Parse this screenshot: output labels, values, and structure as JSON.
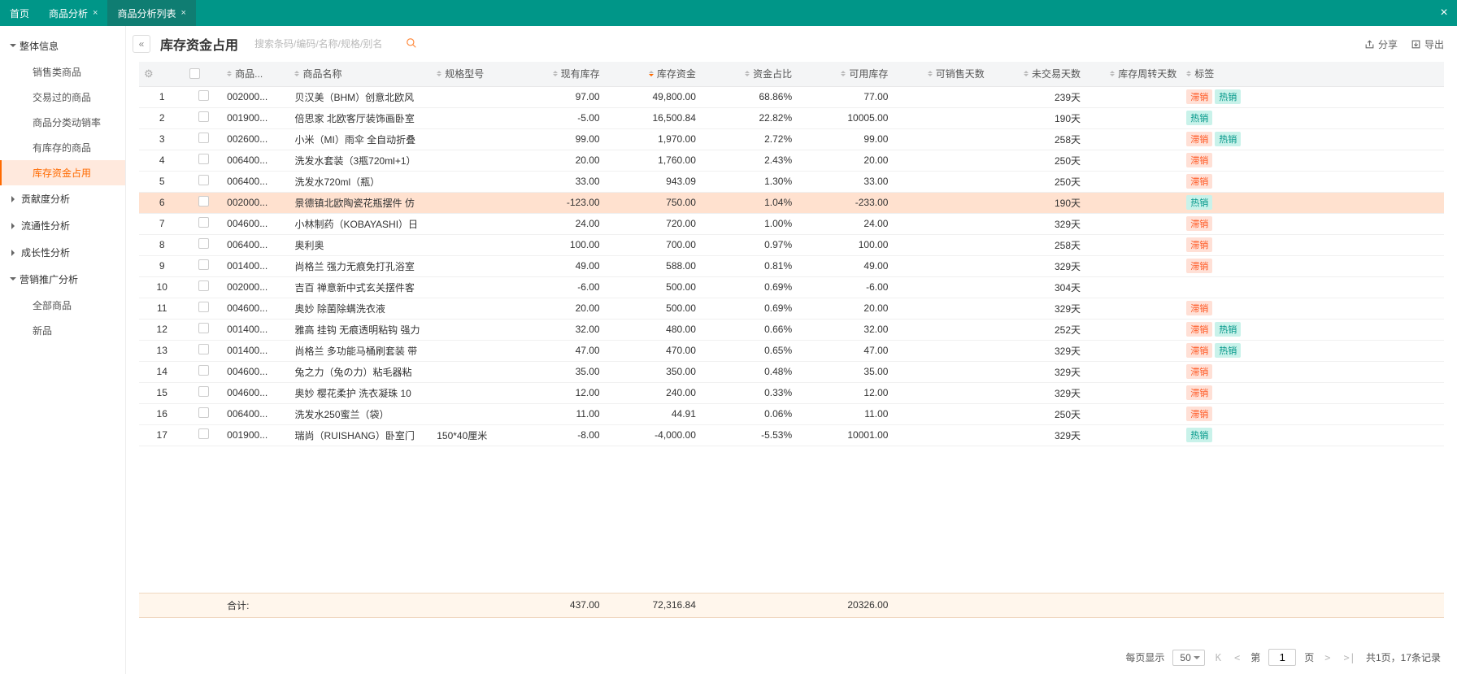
{
  "tabs": [
    {
      "label": "首页",
      "closable": false,
      "active": false
    },
    {
      "label": "商品分析",
      "closable": true,
      "active": false
    },
    {
      "label": "商品分析列表",
      "closable": true,
      "active": true
    }
  ],
  "sidebar": {
    "groups": [
      {
        "label": "整体信息",
        "open": true,
        "items": [
          {
            "label": "销售类商品"
          },
          {
            "label": "交易过的商品"
          },
          {
            "label": "商品分类动销率"
          },
          {
            "label": "有库存的商品"
          },
          {
            "label": "库存资金占用",
            "active": true
          }
        ]
      },
      {
        "label": "贡献度分析",
        "open": false,
        "items": []
      },
      {
        "label": "流通性分析",
        "open": false,
        "items": []
      },
      {
        "label": "成长性分析",
        "open": false,
        "items": []
      },
      {
        "label": "营销推广分析",
        "open": true,
        "items": [
          {
            "label": "全部商品"
          },
          {
            "label": "新品"
          }
        ]
      }
    ]
  },
  "page": {
    "title": "库存资金占用",
    "search_placeholder": "搜索条码/编码/名称/规格/别名",
    "share": "分享",
    "export": "导出"
  },
  "columns": [
    {
      "key": "idx",
      "label": "",
      "cls": "col-idx",
      "gear": true
    },
    {
      "key": "chk",
      "label": "",
      "cls": "col-chk",
      "checkbox": true
    },
    {
      "key": "code",
      "label": "商品...",
      "cls": "col-code",
      "sort": true
    },
    {
      "key": "name",
      "label": "商品名称",
      "cls": "col-name",
      "sort": true
    },
    {
      "key": "spec",
      "label": "规格型号",
      "cls": "col-spec",
      "sort": true
    },
    {
      "key": "stock",
      "label": "现有库存",
      "cls": "col-n",
      "sort": true,
      "num": true
    },
    {
      "key": "fund",
      "label": "库存资金",
      "cls": "col-n",
      "sort": true,
      "num": true,
      "sorted": "desc"
    },
    {
      "key": "ratio",
      "label": "资金占比",
      "cls": "col-n",
      "sort": true,
      "num": true
    },
    {
      "key": "avail",
      "label": "可用库存",
      "cls": "col-n",
      "sort": true,
      "num": true
    },
    {
      "key": "saleDays",
      "label": "可销售天数",
      "cls": "col-n",
      "sort": true,
      "num": true
    },
    {
      "key": "noTrade",
      "label": "未交易天数",
      "cls": "col-n",
      "sort": true,
      "num": true
    },
    {
      "key": "turnDays",
      "label": "库存周转天数",
      "cls": "col-n",
      "sort": true,
      "num": true
    },
    {
      "key": "tags",
      "label": "标签",
      "cls": "col-tag",
      "sort": true
    }
  ],
  "rows": [
    {
      "idx": 1,
      "code": "002000...",
      "name": "贝汉美（BHM）创意北欧风",
      "spec": "",
      "stock": "97.00",
      "fund": "49,800.00",
      "ratio": "68.86%",
      "avail": "77.00",
      "saleDays": "",
      "noTrade": "239天",
      "turnDays": "",
      "tags": [
        "slow",
        "hot"
      ]
    },
    {
      "idx": 2,
      "code": "001900...",
      "name": "倍思家 北欧客厅装饰画卧室",
      "spec": "",
      "stock": "-5.00",
      "fund": "16,500.84",
      "ratio": "22.82%",
      "avail": "10005.00",
      "saleDays": "",
      "noTrade": "190天",
      "turnDays": "",
      "tags": [
        "hot"
      ]
    },
    {
      "idx": 3,
      "code": "002600...",
      "name": "小米（MI）雨伞 全自动折叠",
      "spec": "",
      "stock": "99.00",
      "fund": "1,970.00",
      "ratio": "2.72%",
      "avail": "99.00",
      "saleDays": "",
      "noTrade": "258天",
      "turnDays": "",
      "tags": [
        "slow",
        "hot"
      ]
    },
    {
      "idx": 4,
      "code": "006400...",
      "name": "洗发水套装（3瓶720ml+1）",
      "spec": "",
      "stock": "20.00",
      "fund": "1,760.00",
      "ratio": "2.43%",
      "avail": "20.00",
      "saleDays": "",
      "noTrade": "250天",
      "turnDays": "",
      "tags": [
        "slow"
      ]
    },
    {
      "idx": 5,
      "code": "006400...",
      "name": "洗发水720ml（瓶）",
      "spec": "",
      "stock": "33.00",
      "fund": "943.09",
      "ratio": "1.30%",
      "avail": "33.00",
      "saleDays": "",
      "noTrade": "250天",
      "turnDays": "",
      "tags": [
        "slow"
      ]
    },
    {
      "idx": 6,
      "hl": true,
      "code": "002000...",
      "name": "景德镇北欧陶瓷花瓶摆件 仿",
      "spec": "",
      "stock": "-123.00",
      "fund": "750.00",
      "ratio": "1.04%",
      "avail": "-233.00",
      "saleDays": "",
      "noTrade": "190天",
      "turnDays": "",
      "tags": [
        "hot"
      ]
    },
    {
      "idx": 7,
      "code": "004600...",
      "name": "小林制药（KOBAYASHI）日",
      "spec": "",
      "stock": "24.00",
      "fund": "720.00",
      "ratio": "1.00%",
      "avail": "24.00",
      "saleDays": "",
      "noTrade": "329天",
      "turnDays": "",
      "tags": [
        "slow"
      ]
    },
    {
      "idx": 8,
      "code": "006400...",
      "name": "奥利奥",
      "spec": "",
      "stock": "100.00",
      "fund": "700.00",
      "ratio": "0.97%",
      "avail": "100.00",
      "saleDays": "",
      "noTrade": "258天",
      "turnDays": "",
      "tags": [
        "slow"
      ]
    },
    {
      "idx": 9,
      "code": "001400...",
      "name": "尚格兰 强力无痕免打孔浴室",
      "spec": "",
      "stock": "49.00",
      "fund": "588.00",
      "ratio": "0.81%",
      "avail": "49.00",
      "saleDays": "",
      "noTrade": "329天",
      "turnDays": "",
      "tags": [
        "slow"
      ]
    },
    {
      "idx": 10,
      "code": "002000...",
      "name": "吉百 禅意新中式玄关摆件客",
      "spec": "",
      "stock": "-6.00",
      "fund": "500.00",
      "ratio": "0.69%",
      "avail": "-6.00",
      "saleDays": "",
      "noTrade": "304天",
      "turnDays": "",
      "tags": []
    },
    {
      "idx": 11,
      "code": "004600...",
      "name": "奥妙 除菌除螨洗衣液",
      "spec": "",
      "stock": "20.00",
      "fund": "500.00",
      "ratio": "0.69%",
      "avail": "20.00",
      "saleDays": "",
      "noTrade": "329天",
      "turnDays": "",
      "tags": [
        "slow"
      ]
    },
    {
      "idx": 12,
      "code": "001400...",
      "name": "雅高 挂钩 无痕透明粘钩 强力",
      "spec": "",
      "stock": "32.00",
      "fund": "480.00",
      "ratio": "0.66%",
      "avail": "32.00",
      "saleDays": "",
      "noTrade": "252天",
      "turnDays": "",
      "tags": [
        "slow",
        "hot"
      ]
    },
    {
      "idx": 13,
      "code": "001400...",
      "name": "尚格兰 多功能马桶刷套装 带",
      "spec": "",
      "stock": "47.00",
      "fund": "470.00",
      "ratio": "0.65%",
      "avail": "47.00",
      "saleDays": "",
      "noTrade": "329天",
      "turnDays": "",
      "tags": [
        "slow",
        "hot"
      ]
    },
    {
      "idx": 14,
      "code": "004600...",
      "name": "兔之力（兔の力）粘毛器粘",
      "spec": "",
      "stock": "35.00",
      "fund": "350.00",
      "ratio": "0.48%",
      "avail": "35.00",
      "saleDays": "",
      "noTrade": "329天",
      "turnDays": "",
      "tags": [
        "slow"
      ]
    },
    {
      "idx": 15,
      "code": "004600...",
      "name": "奥妙 樱花柔护 洗衣凝珠 10",
      "spec": "",
      "stock": "12.00",
      "fund": "240.00",
      "ratio": "0.33%",
      "avail": "12.00",
      "saleDays": "",
      "noTrade": "329天",
      "turnDays": "",
      "tags": [
        "slow"
      ]
    },
    {
      "idx": 16,
      "code": "006400...",
      "name": "洗发水250蜜兰（袋）",
      "spec": "",
      "stock": "11.00",
      "fund": "44.91",
      "ratio": "0.06%",
      "avail": "11.00",
      "saleDays": "",
      "noTrade": "250天",
      "turnDays": "",
      "tags": [
        "slow"
      ]
    },
    {
      "idx": 17,
      "code": "001900...",
      "name": "瑞尚（RUISHANG）卧室门",
      "spec": "150*40厘米",
      "stock": "-8.00",
      "fund": "-4,000.00",
      "ratio": "-5.53%",
      "avail": "10001.00",
      "saleDays": "",
      "noTrade": "329天",
      "turnDays": "",
      "tags": [
        "hot"
      ]
    }
  ],
  "tag_labels": {
    "slow": "滞销",
    "hot": "热销"
  },
  "footer": {
    "label": "合计:",
    "stock": "437.00",
    "fund": "72,316.84",
    "avail": "20326.00"
  },
  "pager": {
    "per_page_label": "每页显示",
    "per_page": "50",
    "page_prefix": "第",
    "page": "1",
    "page_suffix": "页",
    "summary": "共1页，17条记录"
  }
}
